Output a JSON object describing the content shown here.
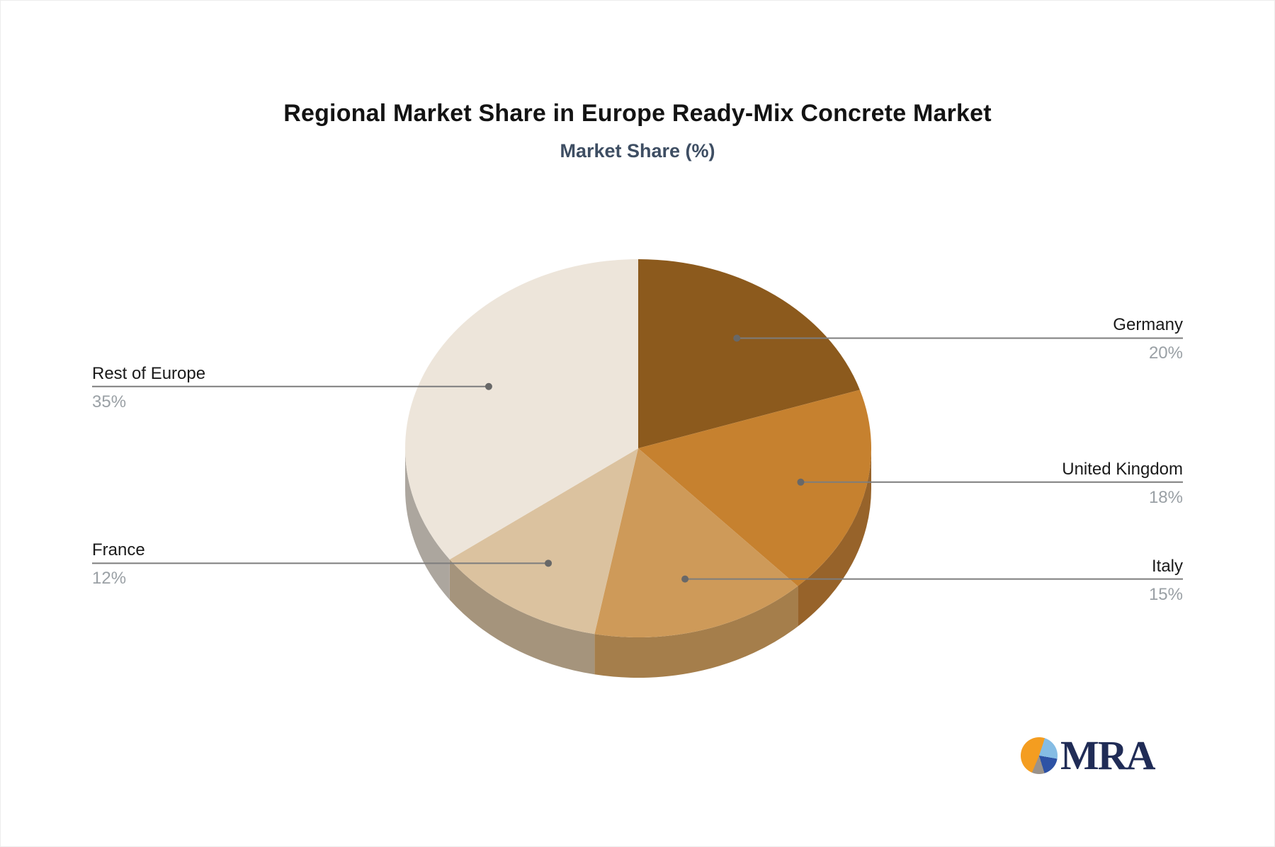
{
  "chart": {
    "title": "Regional Market Share in Europe Ready-Mix Concrete Market",
    "subtitle": "Market Share (%)"
  },
  "chart_data": {
    "type": "pie",
    "style": "3d",
    "title": "Regional Market Share in Europe Ready-Mix Concrete Market",
    "subtitle": "Market Share (%)",
    "unit": "percent",
    "start_angle": "12 o'clock",
    "direction": "clockwise",
    "legend_position": "callout labels left and right of pie",
    "slices": [
      {
        "label": "Germany",
        "value": 20,
        "pct_label": "20%",
        "color": "#8C5A1D",
        "side_color": "#6E4717",
        "callout_side": "right"
      },
      {
        "label": "United Kingdom",
        "value": 18,
        "pct_label": "18%",
        "color": "#C6812F",
        "side_color": "#97632A",
        "callout_side": "right"
      },
      {
        "label": "Italy",
        "value": 15,
        "pct_label": "15%",
        "color": "#CE9A59",
        "side_color": "#A57E4B",
        "callout_side": "right"
      },
      {
        "label": "France",
        "value": 12,
        "pct_label": "12%",
        "color": "#DBC29F",
        "side_color": "#A5947C",
        "callout_side": "left"
      },
      {
        "label": "Rest of Europe",
        "value": 35,
        "pct_label": "35%",
        "color": "#EDE5DA",
        "side_color": "#ACA69E",
        "callout_side": "left"
      }
    ],
    "annotation_colors": {
      "label_text": "#1a1a1a",
      "percent_text": "#9AA0A5",
      "leader_line": "#7d7d7d",
      "leader_dot": "#686868"
    }
  },
  "logo": {
    "text": "MRA",
    "text_color": "#202C56",
    "icon_colors": {
      "orange": "#F49D20",
      "light_blue": "#85BCE4",
      "dark_blue": "#2D52A5",
      "gray": "#9A928A"
    }
  }
}
